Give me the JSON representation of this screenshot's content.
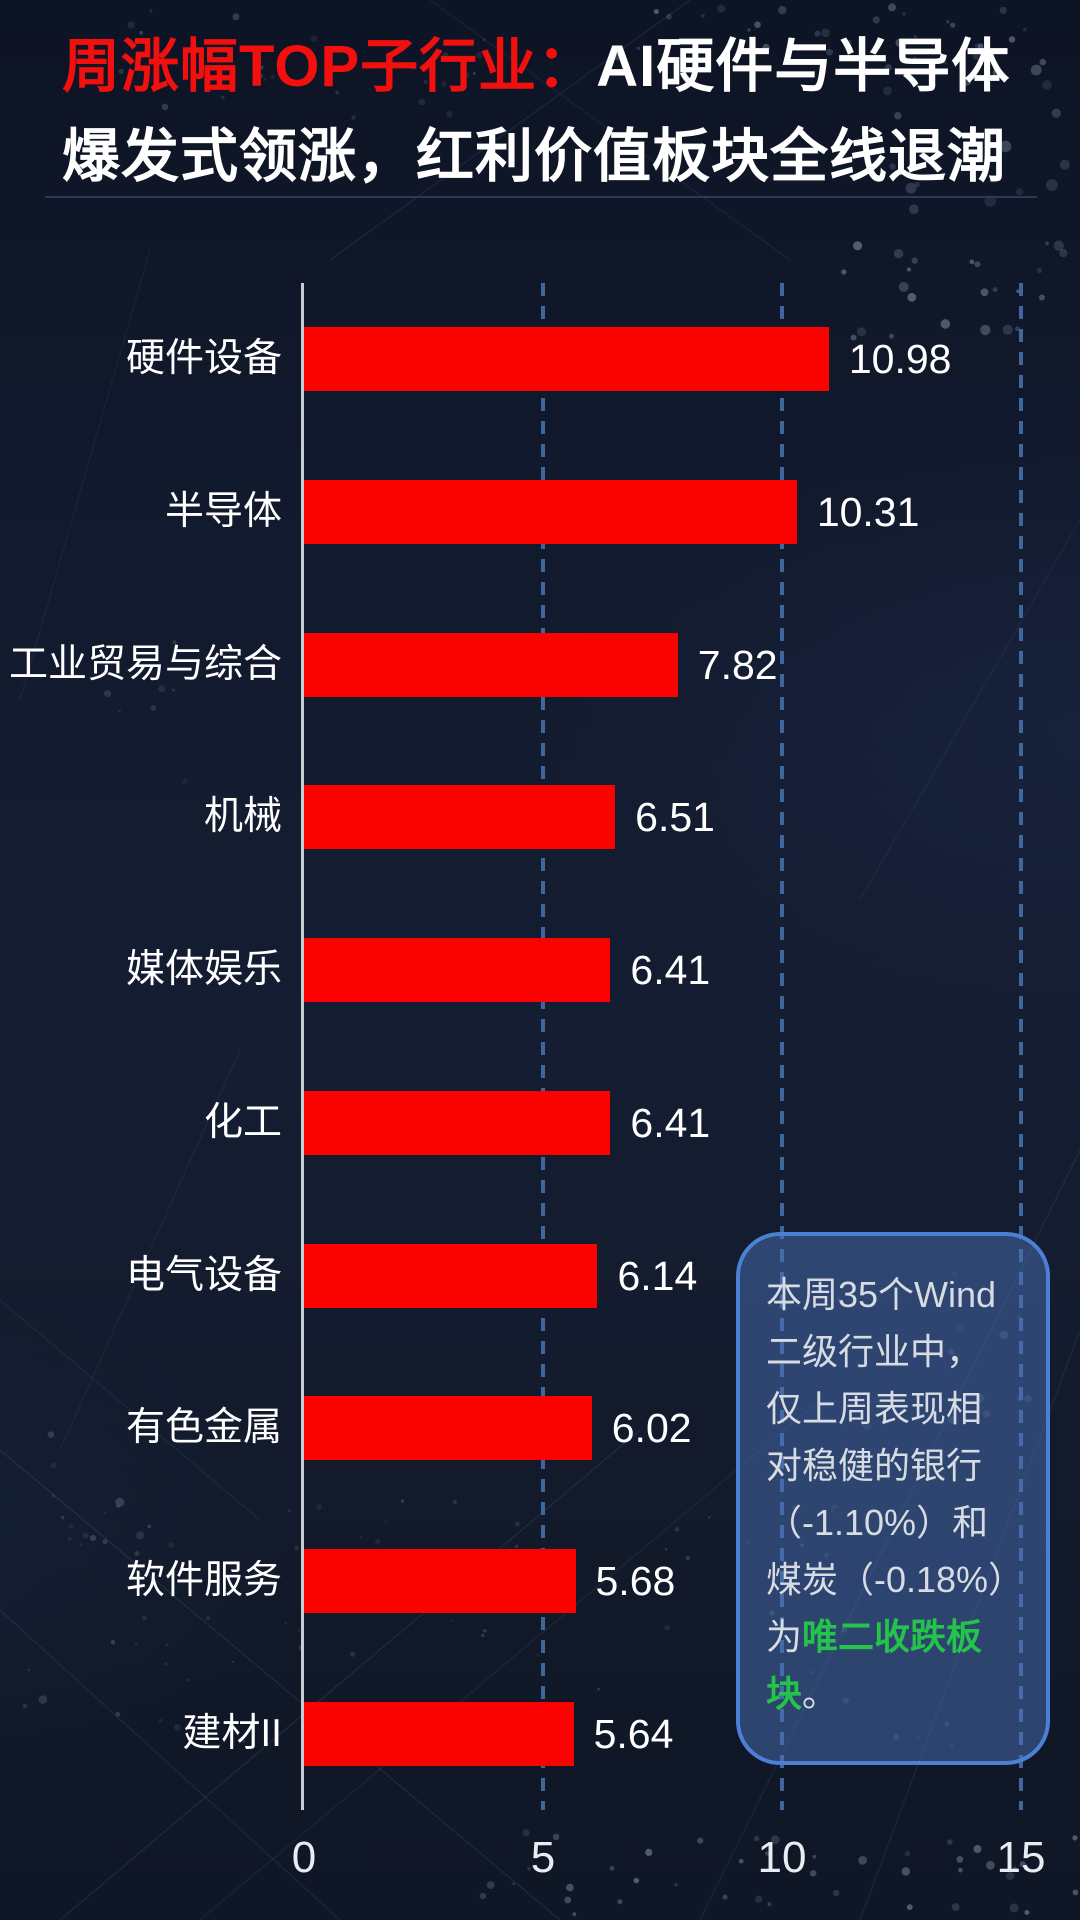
{
  "title": {
    "red_color": "#f2100e",
    "lines": [
      [
        {
          "text": "周涨幅TOP子行业：",
          "red": true
        },
        {
          "text": "AI硬件与半导体",
          "red": false
        }
      ],
      [
        {
          "text": "爆发式领涨，红利价值板块全线退潮",
          "red": false
        }
      ]
    ]
  },
  "chart_data": {
    "type": "bar",
    "orientation": "horizontal",
    "categories": [
      "硬件设备",
      "半导体",
      "工业贸易与综合",
      "机械",
      "媒体娱乐",
      "化工",
      "电气设备",
      "有色金属",
      "软件服务",
      "建材II"
    ],
    "values": [
      10.98,
      10.31,
      7.82,
      6.51,
      6.41,
      6.41,
      6.14,
      6.02,
      5.68,
      5.64
    ],
    "value_labels": [
      "10.98",
      "10.31",
      "7.82",
      "6.51",
      "6.41",
      "6.41",
      "6.14",
      "6.02",
      "5.68",
      "5.64"
    ],
    "x_ticks": [
      "0",
      "5",
      "10",
      "15"
    ],
    "x_tick_values": [
      0,
      5,
      10,
      15
    ],
    "xlim": [
      0,
      15.9
    ],
    "grid": "vertical-dashed",
    "bar_color": "#fa0200",
    "gridline_color": "#40669e",
    "axis_line_color": "#c7cbd4",
    "label_color": "#ffffff"
  },
  "note_box": {
    "border_color": "#4c80d4",
    "text_color": "#d7dbe2",
    "green_color": "#23c34c",
    "lines": [
      [
        {
          "text": "本周35个Wind",
          "green": false
        }
      ],
      [
        {
          "text": "二级行业中，",
          "green": false
        }
      ],
      [
        {
          "text": "仅上周表现相",
          "green": false
        }
      ],
      [
        {
          "text": "对稳健的银行",
          "green": false
        }
      ],
      [
        {
          "text": "（-1.10%）和",
          "green": false
        }
      ],
      [
        {
          "text": "煤炭（-0.18%）",
          "green": false
        }
      ],
      [
        {
          "text": "为",
          "green": false
        },
        {
          "text": "唯二收跌板",
          "green": true
        }
      ],
      [
        {
          "text": "块",
          "green": true
        },
        {
          "text": "。",
          "green": false
        }
      ]
    ]
  }
}
